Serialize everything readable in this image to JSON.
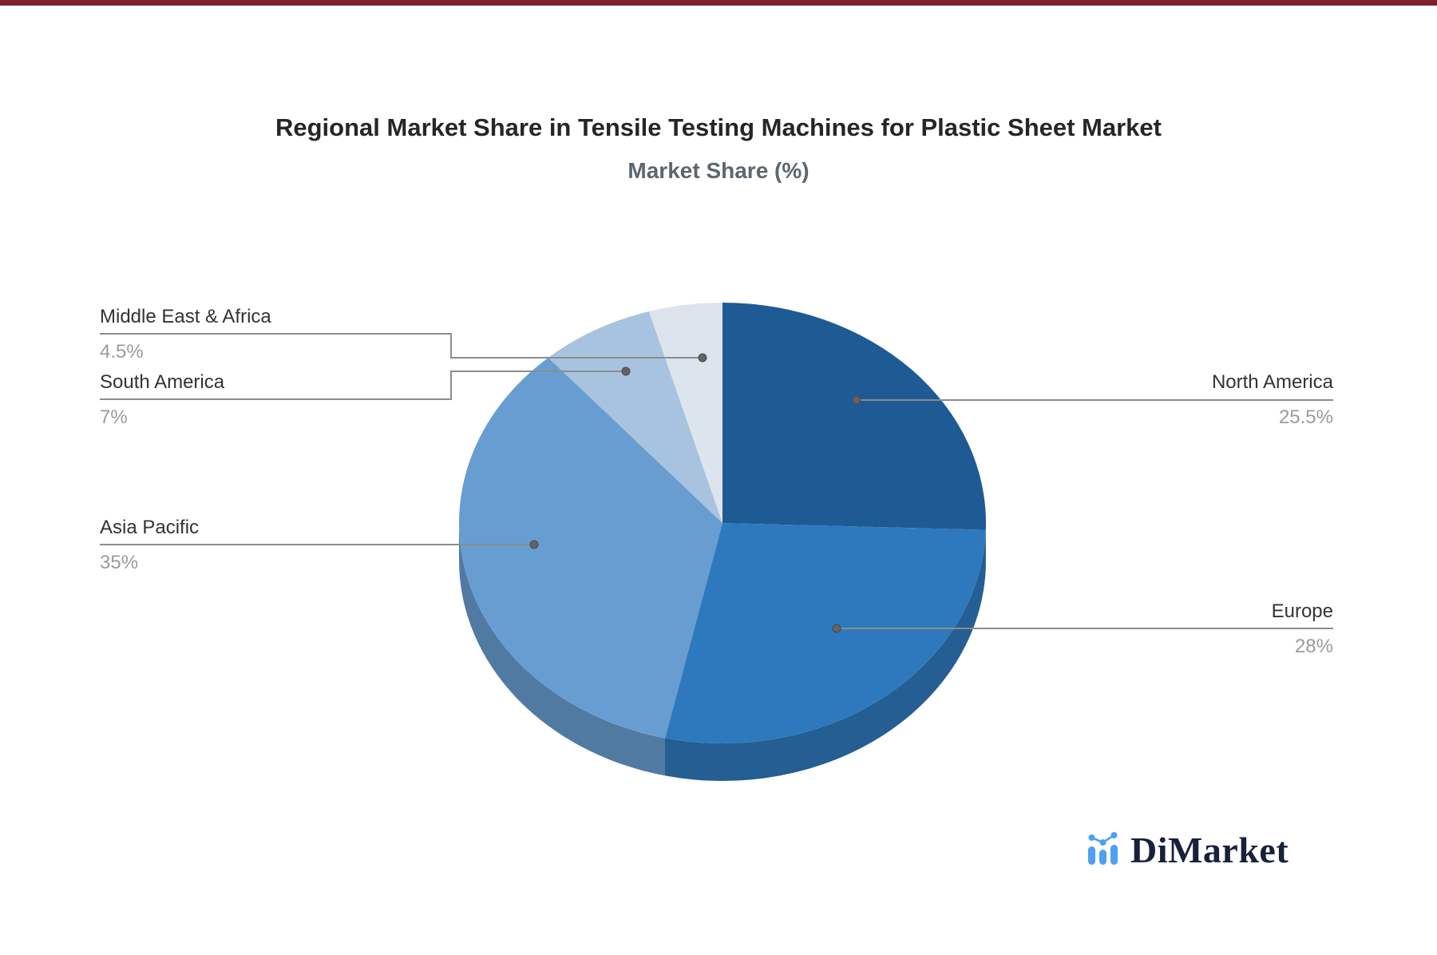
{
  "page": {
    "top_strip_color": "#7d232e",
    "background_color": "#ffffff"
  },
  "header": {
    "title": "Regional Market Share in Tensile Testing Machines for Plastic Sheet Market",
    "subtitle": "Market Share (%)"
  },
  "chart_data": {
    "type": "pie",
    "effect_3d": true,
    "start_angle_deg": 0,
    "direction": "clockwise",
    "labels": [
      "North America",
      "Europe",
      "Asia Pacific",
      "South America",
      "Middle East & Africa"
    ],
    "values": [
      25.5,
      28,
      35,
      7,
      4.5
    ],
    "value_labels": [
      "25.5%",
      "28%",
      "35%",
      "7%",
      "4.5%"
    ],
    "colors": [
      "#1e5a94",
      "#2e79bd",
      "#689dd1",
      "#a8c3df",
      "#dce4ee"
    ],
    "leader_line_color": "#8c8c8c",
    "label_text_color": "#333333",
    "value_text_color": "#9b9b9b",
    "legend_position": "none",
    "label_style": "leader-lines"
  },
  "brand": {
    "name": "DiMarket",
    "text_color": "#17213c",
    "icon_color": "#4da0f2",
    "icon": "bar-chart-trend-logo-icon"
  }
}
